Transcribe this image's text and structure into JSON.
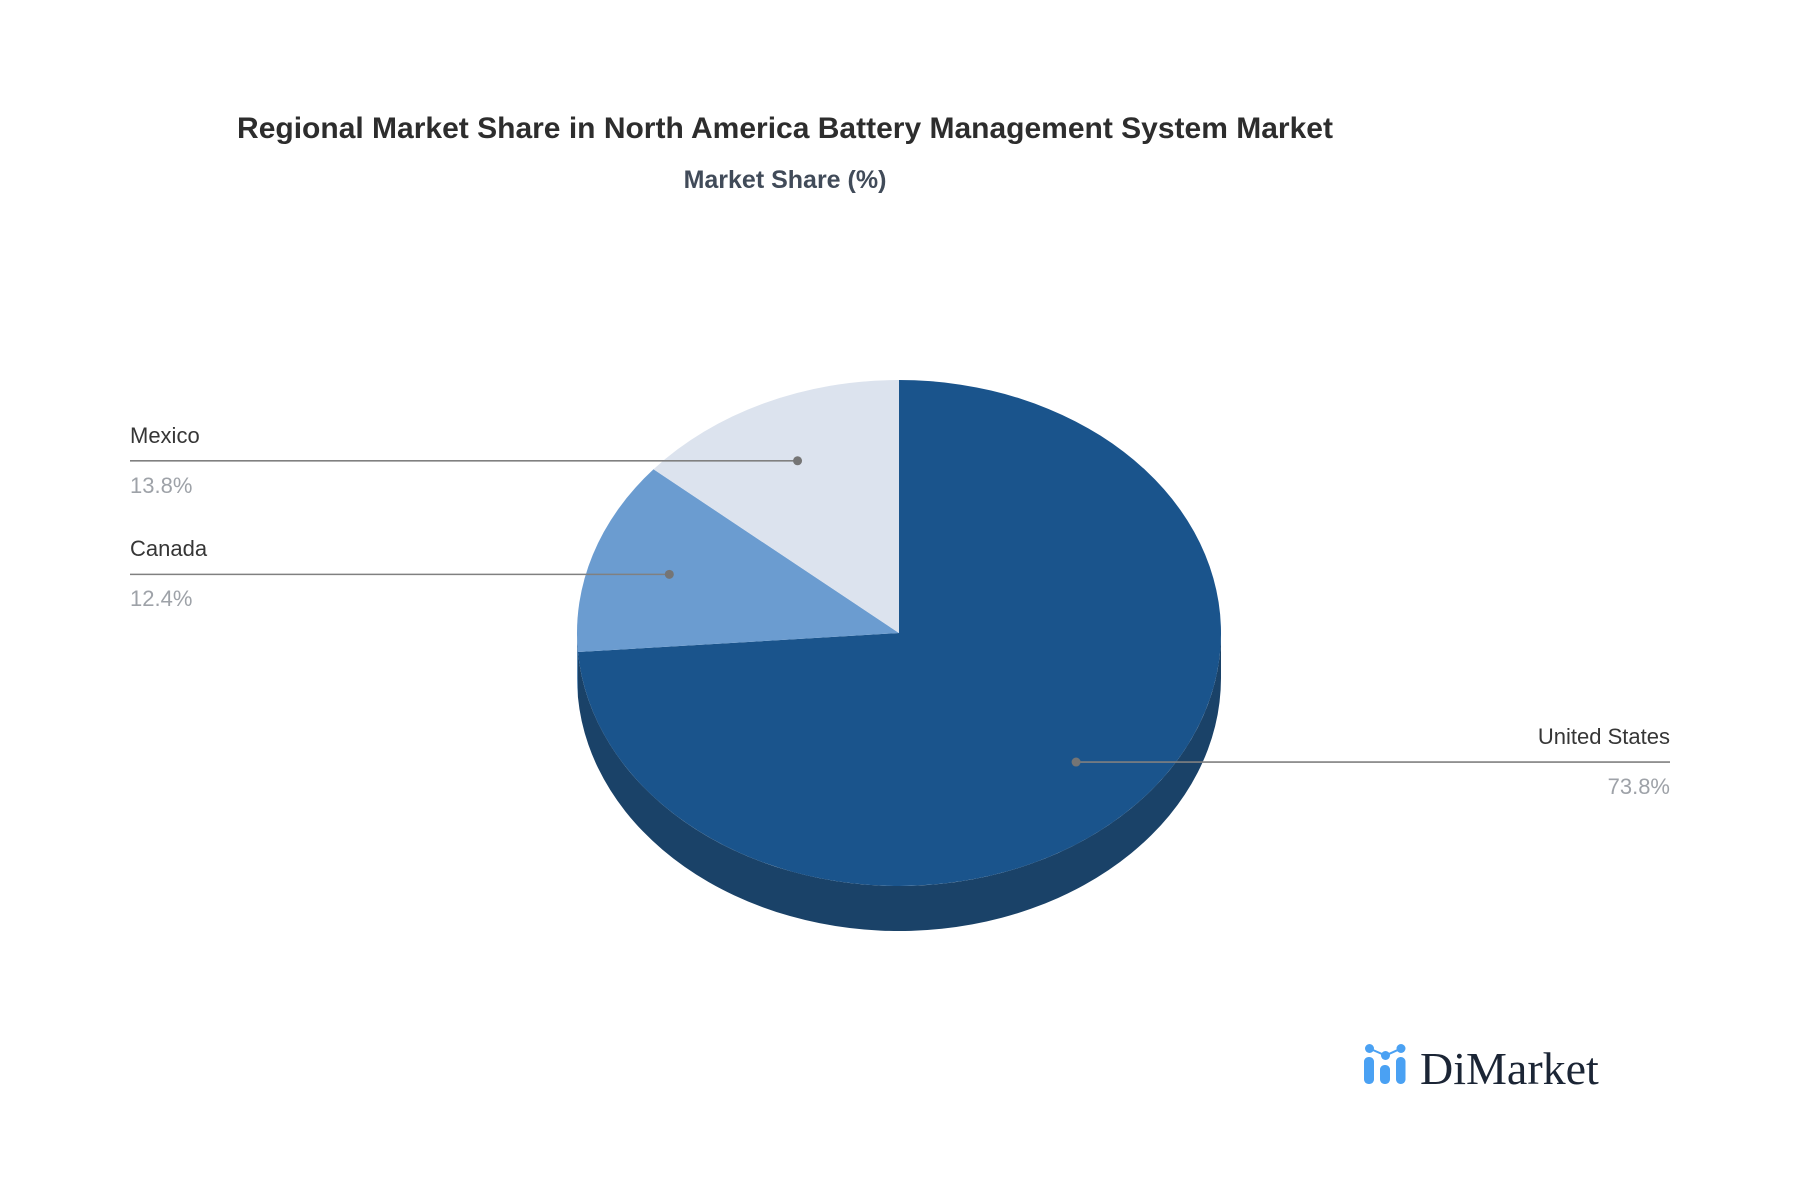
{
  "chart_data": {
    "type": "pie",
    "title": "Regional Market Share in North America Battery Management System Market",
    "subtitle": "Market Share (%)",
    "unit": "%",
    "direction": "clockwise",
    "start_angle_deg": 0,
    "effect": "3d-depth",
    "legend_position": "callout-labels",
    "series": [
      {
        "label": "United States",
        "value": 73.8,
        "display": "73.8%",
        "color": "#1a548c",
        "side_color": "#1a4268"
      },
      {
        "label": "Canada",
        "value": 12.4,
        "display": "12.4%",
        "color": "#6b9cd0",
        "side_color": "#4f7fae"
      },
      {
        "label": "Mexico",
        "value": 13.8,
        "display": "13.8%",
        "color": "#dce3ee",
        "side_color": "#b9c6da"
      }
    ]
  },
  "branding": {
    "logo_text": "DiMarket",
    "logo_icon": "bar-chart-with-trend-icon",
    "logo_icon_color": "#4aa1f3",
    "logo_text_color": "#1b2535"
  },
  "styles": {
    "background": "#ffffff",
    "title_color": "#2d2d2d",
    "subtitle_color": "#414b59",
    "label_color": "#363636",
    "value_color": "#9ea2a8",
    "callout_line_color": "#808080",
    "callout_dot_color": "#757575"
  }
}
